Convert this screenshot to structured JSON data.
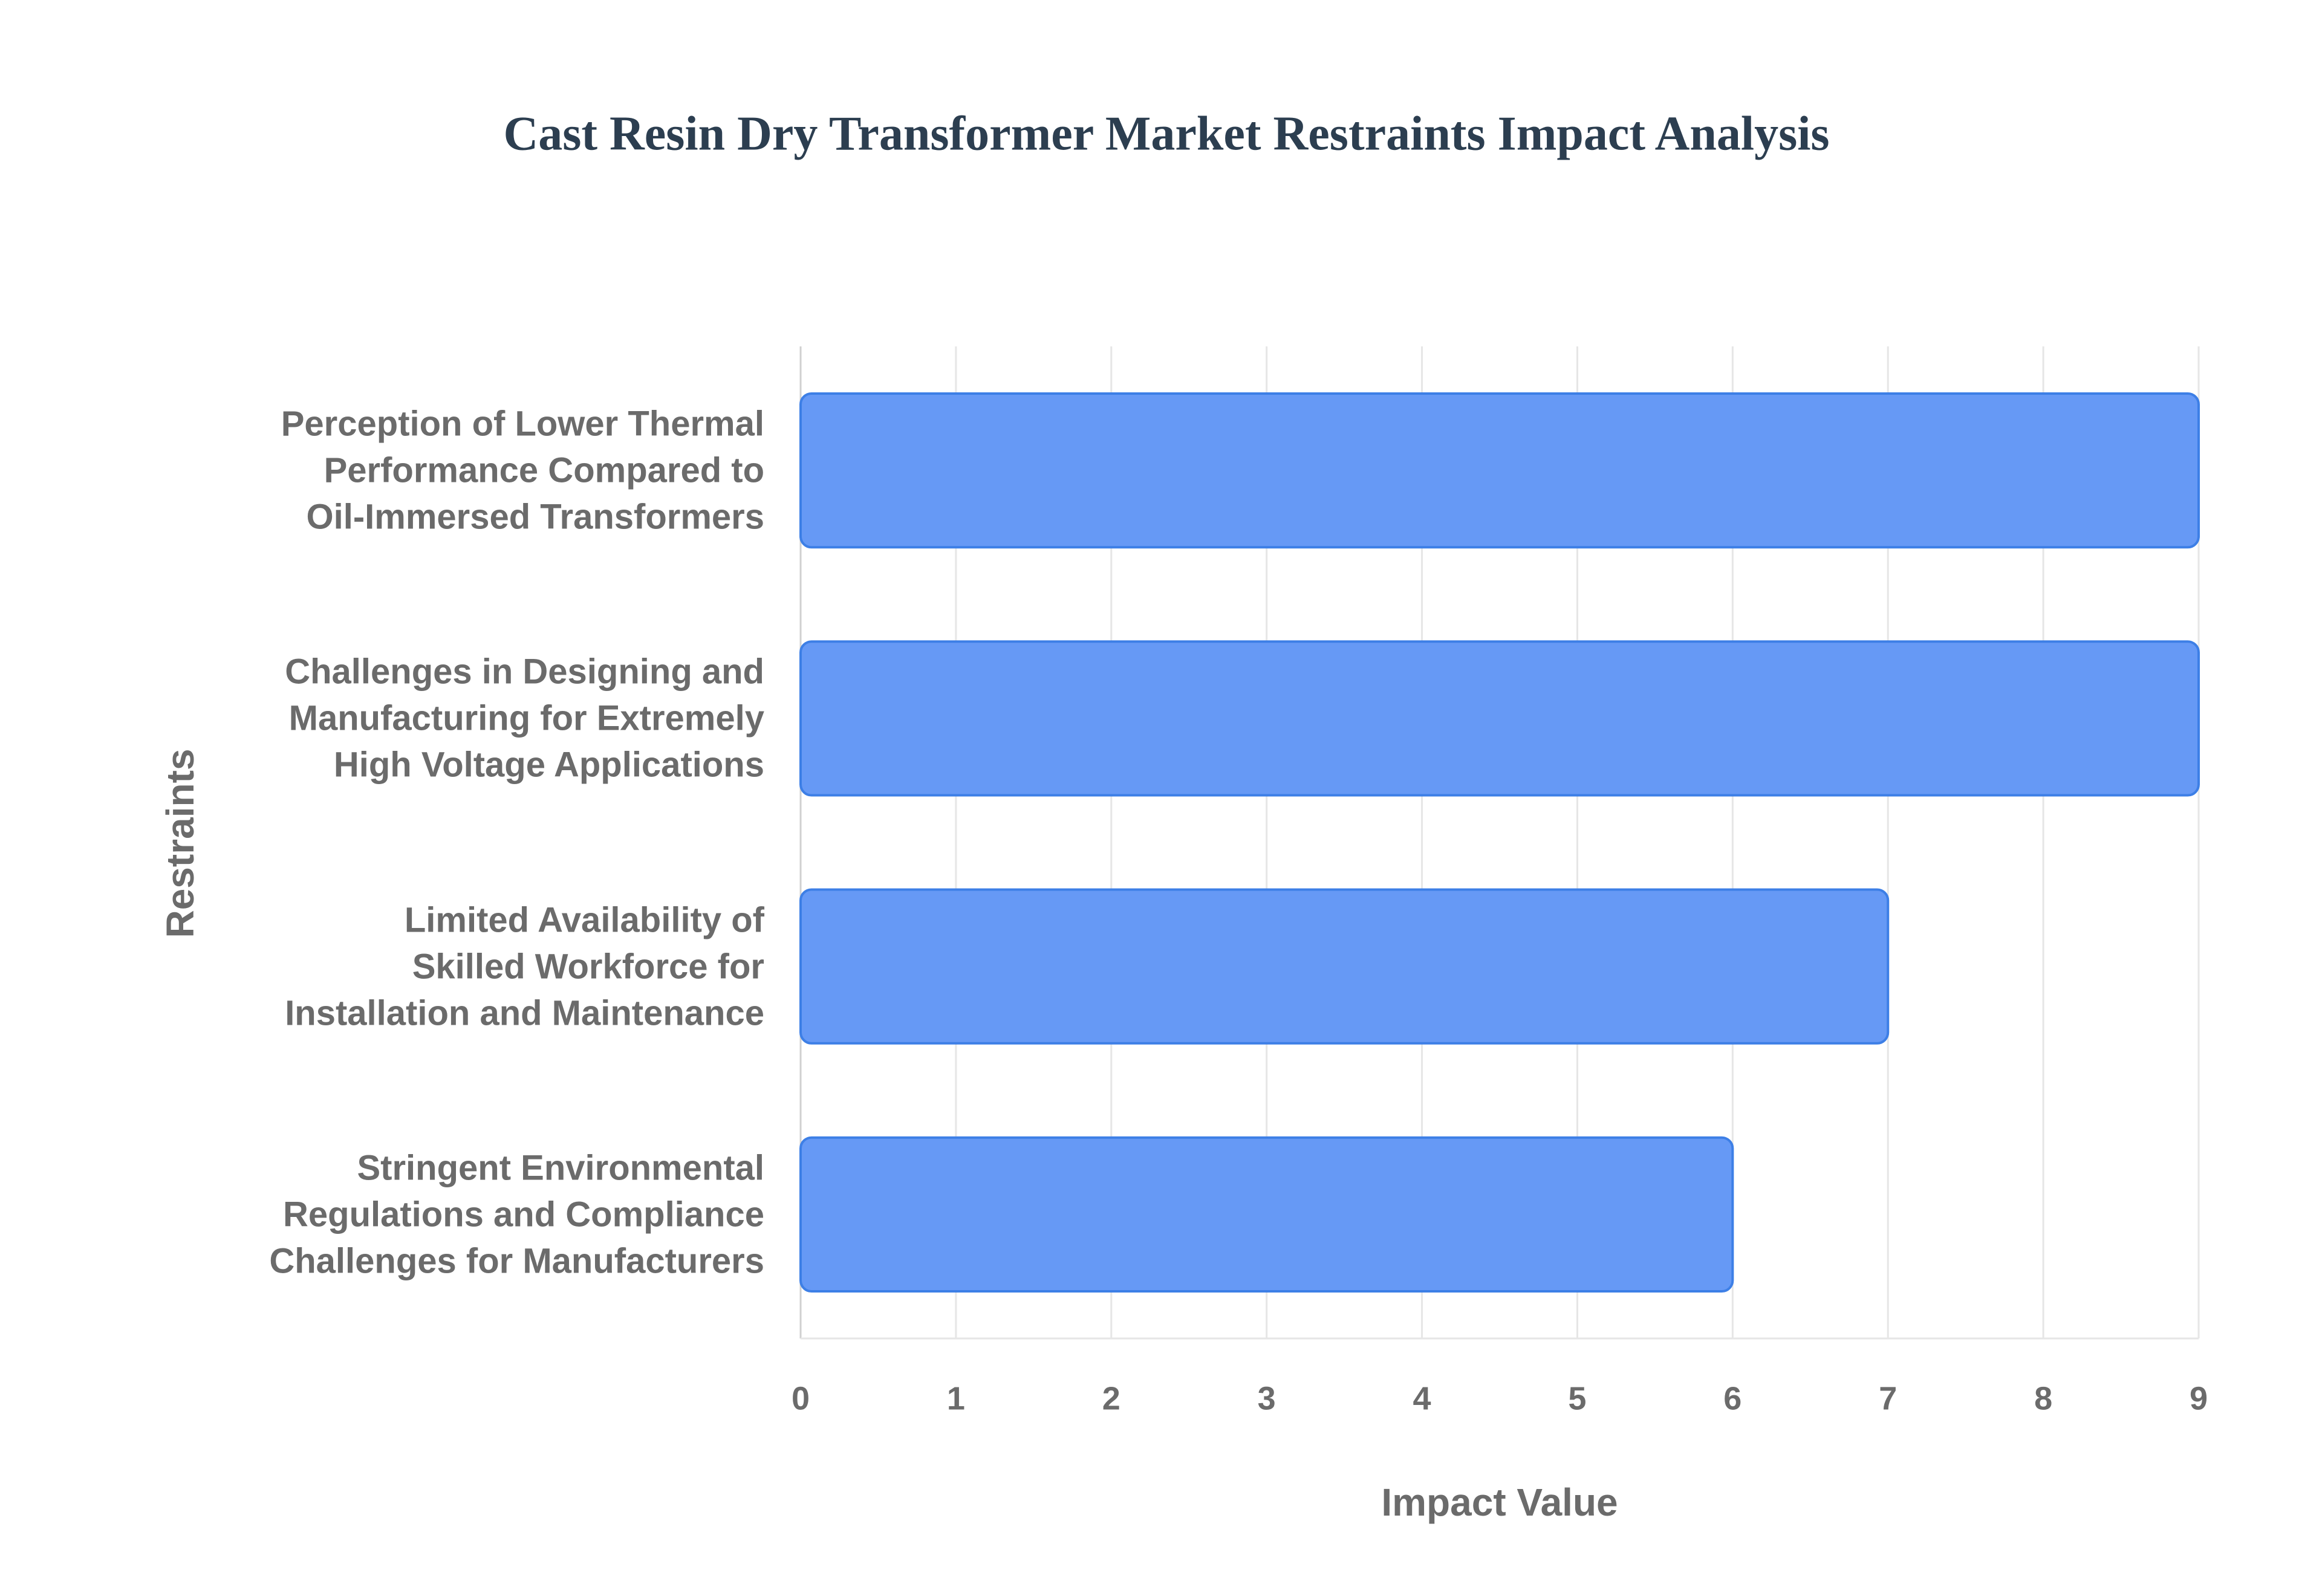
{
  "chart_data": {
    "type": "barh",
    "title": "Cast Resin Dry Transformer Market Restraints Impact Analysis",
    "x_label": "Impact Value",
    "y_label": "Restraints",
    "categories": [
      "Perception of Lower Thermal\nPerformance Compared to\nOil-Immersed Transformers",
      "Challenges in Designing and\nManufacturing for Extremely\nHigh Voltage Applications",
      "Limited Availability of\nSkilled Workforce for\nInstallation and Maintenance",
      "Stringent Environmental\nRegulations and Compliance\nChallenges for Manufacturers"
    ],
    "values": [
      9,
      9,
      7,
      6
    ],
    "color": "#6699f5",
    "xlim": [
      0,
      9
    ],
    "xticks": [
      0,
      1,
      2,
      3,
      4,
      5,
      6,
      7,
      8,
      9
    ],
    "grid": true
  }
}
